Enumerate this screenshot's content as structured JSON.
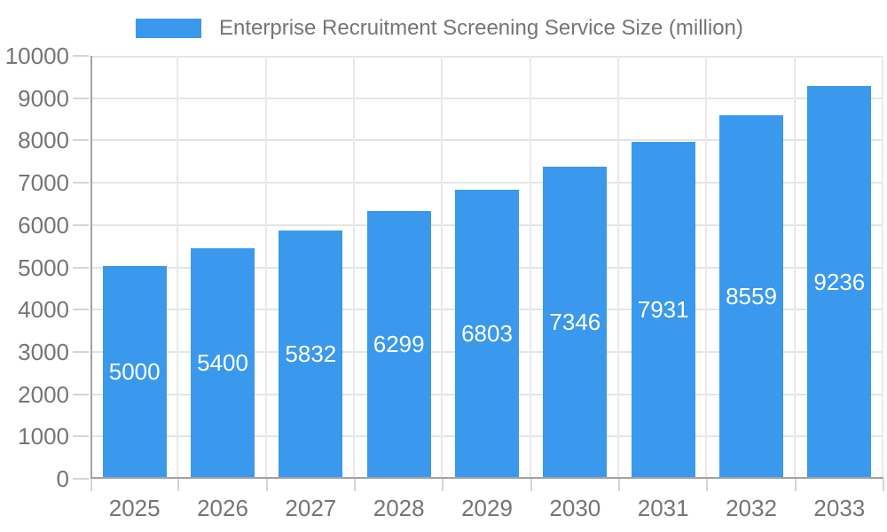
{
  "legend": {
    "label": "Enterprise Recruitment Screening Service Size (million)"
  },
  "chart_data": {
    "type": "bar",
    "title": "Enterprise Recruitment Screening Service Size (million)",
    "categories": [
      "2025",
      "2026",
      "2027",
      "2028",
      "2029",
      "2030",
      "2031",
      "2032",
      "2033"
    ],
    "values": [
      5000,
      5400,
      5832,
      6299,
      6803,
      7346,
      7931,
      8559,
      9236
    ],
    "series": [
      {
        "name": "Enterprise Recruitment Screening Service Size (million)",
        "values": [
          5000,
          5400,
          5832,
          6299,
          6803,
          7346,
          7931,
          8559,
          9236
        ]
      }
    ],
    "xlabel": "",
    "ylabel": "",
    "ylim": [
      0,
      10000
    ],
    "y_tick_step": 1000,
    "y_tick_labels": [
      "0",
      "1000",
      "2000",
      "3000",
      "4000",
      "5000",
      "6000",
      "7000",
      "8000",
      "9000",
      "10000"
    ],
    "grid": true,
    "legend_position": "top-center",
    "value_labels": "inside-center",
    "colors": {
      "bar": "#3A99EC",
      "value_label": "#FFFFFF",
      "axis_text": "#757575",
      "axis_line": "#A3A3A3",
      "gridline": "#E5E5E5",
      "tick": "#D5D5D5"
    }
  }
}
